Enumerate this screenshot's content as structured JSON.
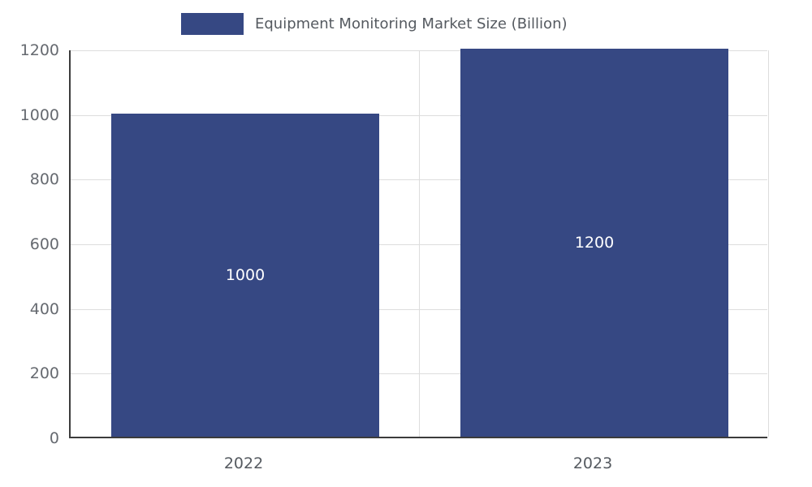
{
  "chart_data": {
    "type": "bar",
    "title": "Equipment Monitoring Market Size (Billion)",
    "categories": [
      "2022",
      "2023"
    ],
    "values": [
      1000,
      1200
    ],
    "xlabel": "",
    "ylabel": "",
    "ylim": [
      0,
      1200
    ],
    "yticks": [
      0,
      200,
      400,
      600,
      800,
      1000,
      1200
    ],
    "grid": true,
    "legend_position": "top",
    "bar_color": "#364883",
    "bar_label_color": "#ffffff",
    "data_labels": [
      "1000",
      "1200"
    ]
  }
}
